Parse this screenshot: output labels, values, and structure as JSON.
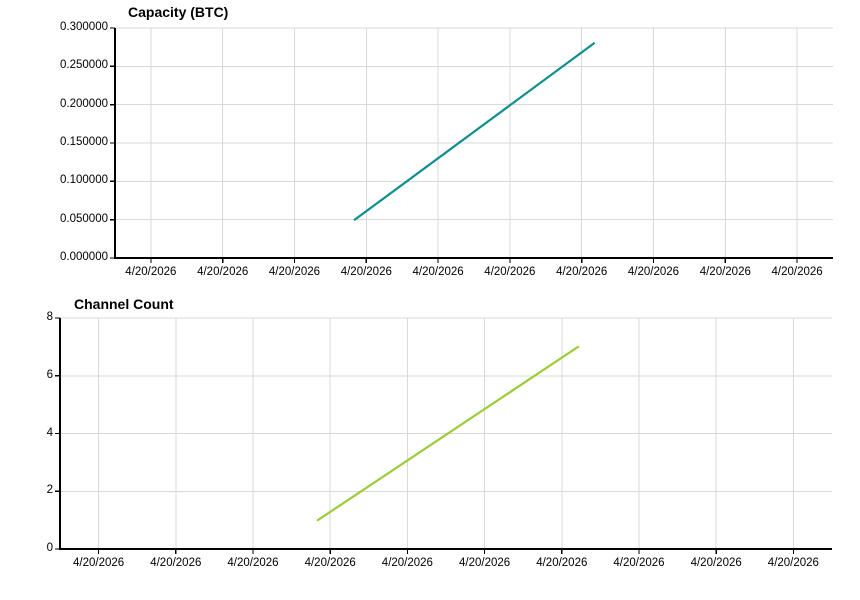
{
  "colors": {
    "background": "#ffffff",
    "gridline": "#d9d9d9",
    "axis": "#000000",
    "text": "#000000",
    "capacity_line": "#0b8e8e",
    "channel_line": "#9acd32"
  },
  "chart_data": [
    {
      "type": "line",
      "title": "Capacity (BTC)",
      "xlabel": "",
      "ylabel": "",
      "ylim": [
        0,
        0.3
      ],
      "grid": true,
      "legend": "none",
      "y_tick_values": [
        0.3,
        0.25,
        0.2,
        0.15,
        0.1,
        0.05,
        0
      ],
      "y_tick_labels": [
        "0.300000",
        "0.250000",
        "0.200000",
        "0.150000",
        "0.100000",
        "0.050000",
        "0.000000"
      ],
      "x_tick_labels": [
        "4/20/2026",
        "4/20/2026",
        "4/20/2026",
        "4/20/2026",
        "4/20/2026",
        "4/20/2026",
        "4/20/2026",
        "4/20/2026",
        "4/20/2026",
        "4/20/2026"
      ],
      "series": [
        {
          "name": "Capacity (BTC)",
          "color": "#0b8e8e",
          "points": [
            {
              "x_frac": 0.334,
              "value": 0.05
            },
            {
              "x_frac": 0.667,
              "value": 0.28
            }
          ]
        }
      ]
    },
    {
      "type": "line",
      "title": "Channel Count",
      "xlabel": "",
      "ylabel": "",
      "ylim": [
        0,
        8
      ],
      "grid": true,
      "legend": "none",
      "y_tick_values": [
        8,
        6,
        4,
        2,
        0
      ],
      "y_tick_labels": [
        "8",
        "6",
        "4",
        "2",
        "0"
      ],
      "x_tick_labels": [
        "4/20/2026",
        "4/20/2026",
        "4/20/2026",
        "4/20/2026",
        "4/20/2026",
        "4/20/2026",
        "4/20/2026",
        "4/20/2026",
        "4/20/2026",
        "4/20/2026"
      ],
      "series": [
        {
          "name": "Channel Count",
          "color": "#9acd32",
          "points": [
            {
              "x_frac": 0.334,
              "value": 1
            },
            {
              "x_frac": 0.671,
              "value": 7
            }
          ]
        }
      ]
    }
  ]
}
